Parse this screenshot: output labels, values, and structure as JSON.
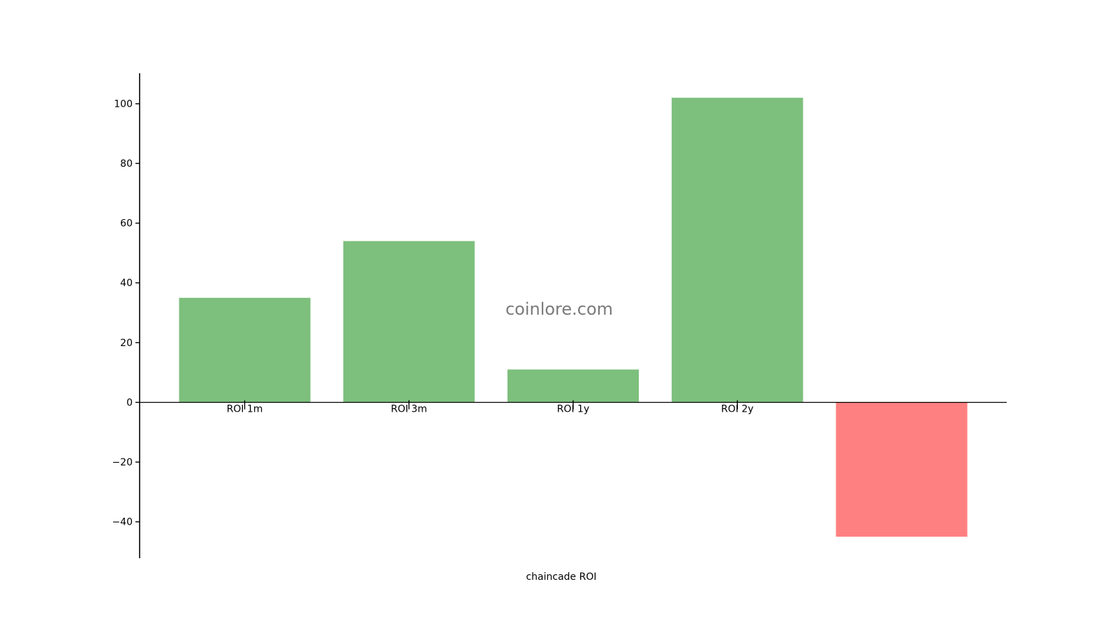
{
  "figure": {
    "background": "#ffffff",
    "watermark_color": "#7a7a7a",
    "axis_color": "#000000",
    "tick_label_color": "#000000"
  },
  "chart_data": {
    "type": "bar",
    "title": "",
    "xlabel": "chaincade ROI",
    "ylabel": "",
    "watermark": "coinlore.com",
    "categories": [
      "ROI 1m",
      "ROI 3m",
      "ROI 1y",
      "ROI 2y",
      ""
    ],
    "values": [
      35,
      54,
      11,
      102,
      -45
    ],
    "bar_colors": [
      "#7dbf7d",
      "#7dbf7d",
      "#7dbf7d",
      "#7dbf7d",
      "#ff8080"
    ],
    "positive_color": "#7dbf7d",
    "negative_color": "#ff8080",
    "yticks": [
      100,
      80,
      60,
      40,
      20,
      0,
      -20,
      -40
    ],
    "ylim": [
      -52.2,
      110.2
    ],
    "grid": false,
    "legend": null,
    "zero_baseline": true
  }
}
